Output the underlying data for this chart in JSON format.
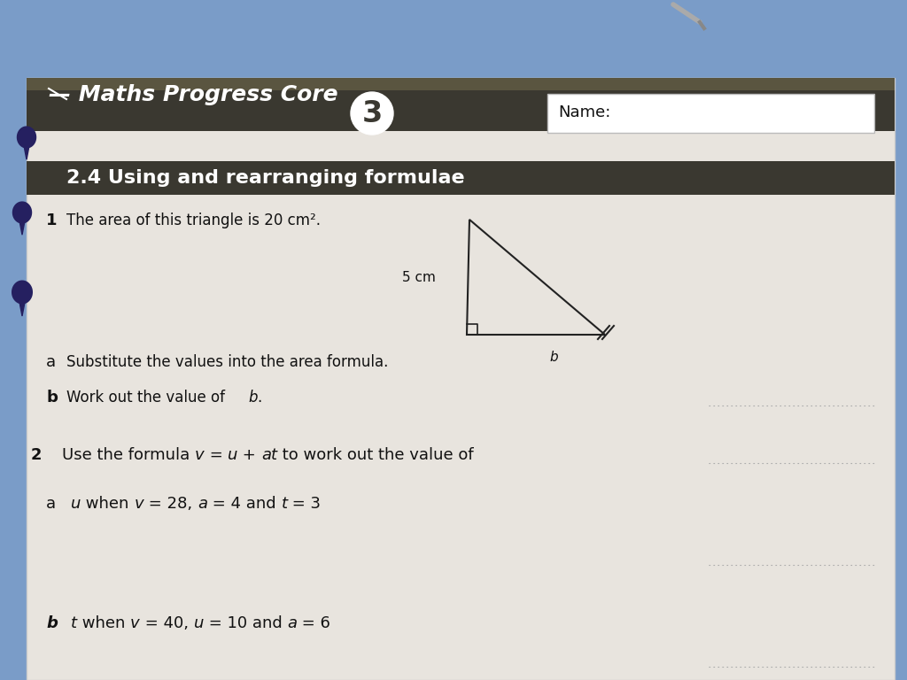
{
  "bg_color": "#7a9cc8",
  "paper_color": "#e8e4de",
  "header_dark_color": "#3a3830",
  "header_text": "Maths Progress Core",
  "header_num": "3",
  "name_label": "Name:",
  "section_title": "2.4 Using and rearranging formulae",
  "q1_label": "1",
  "q1_text": "The area of this triangle is 20 cm².",
  "triangle_h_label": "5 cm",
  "triangle_b_label": "b",
  "qa_bold": "a",
  "qa_text": "Substitute the values into the area formula.",
  "qb_bold": "b",
  "qb_text": "Work out the value of b.",
  "q2_label": "2",
  "q2_text_pre": "Use the formula ",
  "q2_formula": "v = u + at",
  "q2_text_post": " to work out the value of",
  "q2a_bold": "a",
  "q2a_pre": "u",
  "q2a_mid": " when v = 28, a = 4 and t = 3",
  "q2b_bold": "b",
  "q2b_pre": "t",
  "q2b_mid": " when v = 40, u = 10 and a = 6",
  "dot_color": "#aaaaaa",
  "text_dark": "#111111",
  "bookmark_color": "#2a2060"
}
